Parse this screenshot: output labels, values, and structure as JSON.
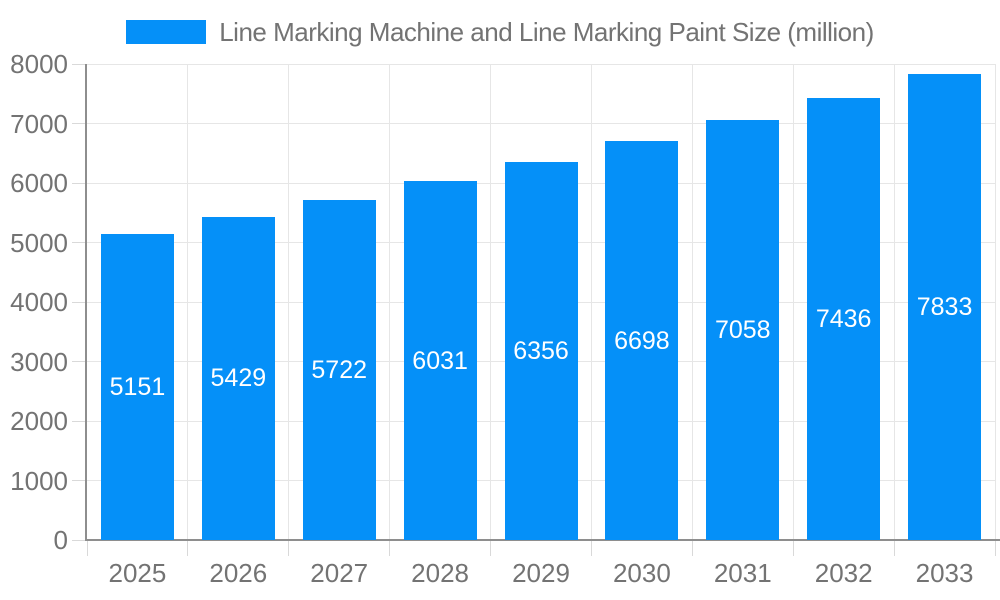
{
  "legend": {
    "label": "Line Marking Machine and Line Marking Paint Size (million)"
  },
  "chart_data": {
    "type": "bar",
    "title": "Line Marking Machine and Line Marking Paint Size (million)",
    "categories": [
      "2025",
      "2026",
      "2027",
      "2028",
      "2029",
      "2030",
      "2031",
      "2032",
      "2033"
    ],
    "values": [
      5151,
      5429,
      5722,
      6031,
      6356,
      6698,
      7058,
      7436,
      7833
    ],
    "xlabel": "",
    "ylabel": "",
    "ylim": [
      0,
      8000
    ],
    "yticks": [
      0,
      1000,
      2000,
      3000,
      4000,
      5000,
      6000,
      7000,
      8000
    ],
    "grid": true,
    "legend_position": "top",
    "bar_color": "#0590F8",
    "bar_label_color": "#ffffff",
    "axis_text_color": "#737373",
    "axis_line_color": "#8e8e8e",
    "grid_color": "#e6e6e6",
    "tick_color": "#d9d9d9",
    "background_color": "#ffffff"
  }
}
